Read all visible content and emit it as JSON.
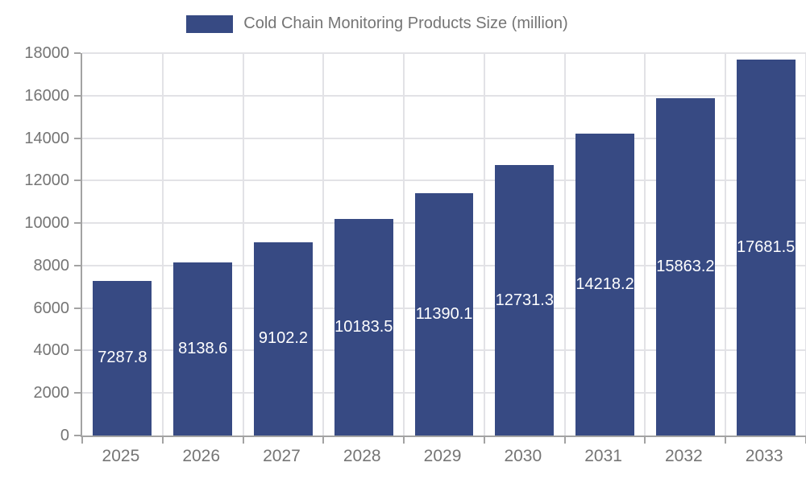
{
  "legend": {
    "label": "Cold Chain Monitoring Products Size (million)"
  },
  "chart_data": {
    "type": "bar",
    "title": "Cold Chain Monitoring Products Size (million)",
    "categories": [
      "2025",
      "2026",
      "2027",
      "2028",
      "2029",
      "2030",
      "2031",
      "2032",
      "2033"
    ],
    "values": [
      7287.8,
      8138.6,
      9102.2,
      10183.5,
      11390.1,
      12731.3,
      14218.2,
      15863.2,
      17681.5
    ],
    "bar_labels": [
      "7287.8",
      "8138.6",
      "9102.2",
      "10183.5",
      "11390.1",
      "12731.3",
      "14218.2",
      "15863.2",
      "17681.5"
    ],
    "xlabel": "",
    "ylabel": "",
    "ylim": [
      0,
      18000
    ],
    "yticks": [
      0,
      2000,
      4000,
      6000,
      8000,
      10000,
      12000,
      14000,
      16000,
      18000
    ],
    "grid": true,
    "legend_position": "top-center",
    "value_label_position": "inside-center",
    "colors": {
      "bar": "#374a83",
      "grid": "#e2e2e6",
      "axis": "#a3a3a3",
      "text": "#757575",
      "bar_label": "#ffffff",
      "background": "#ffffff"
    }
  }
}
